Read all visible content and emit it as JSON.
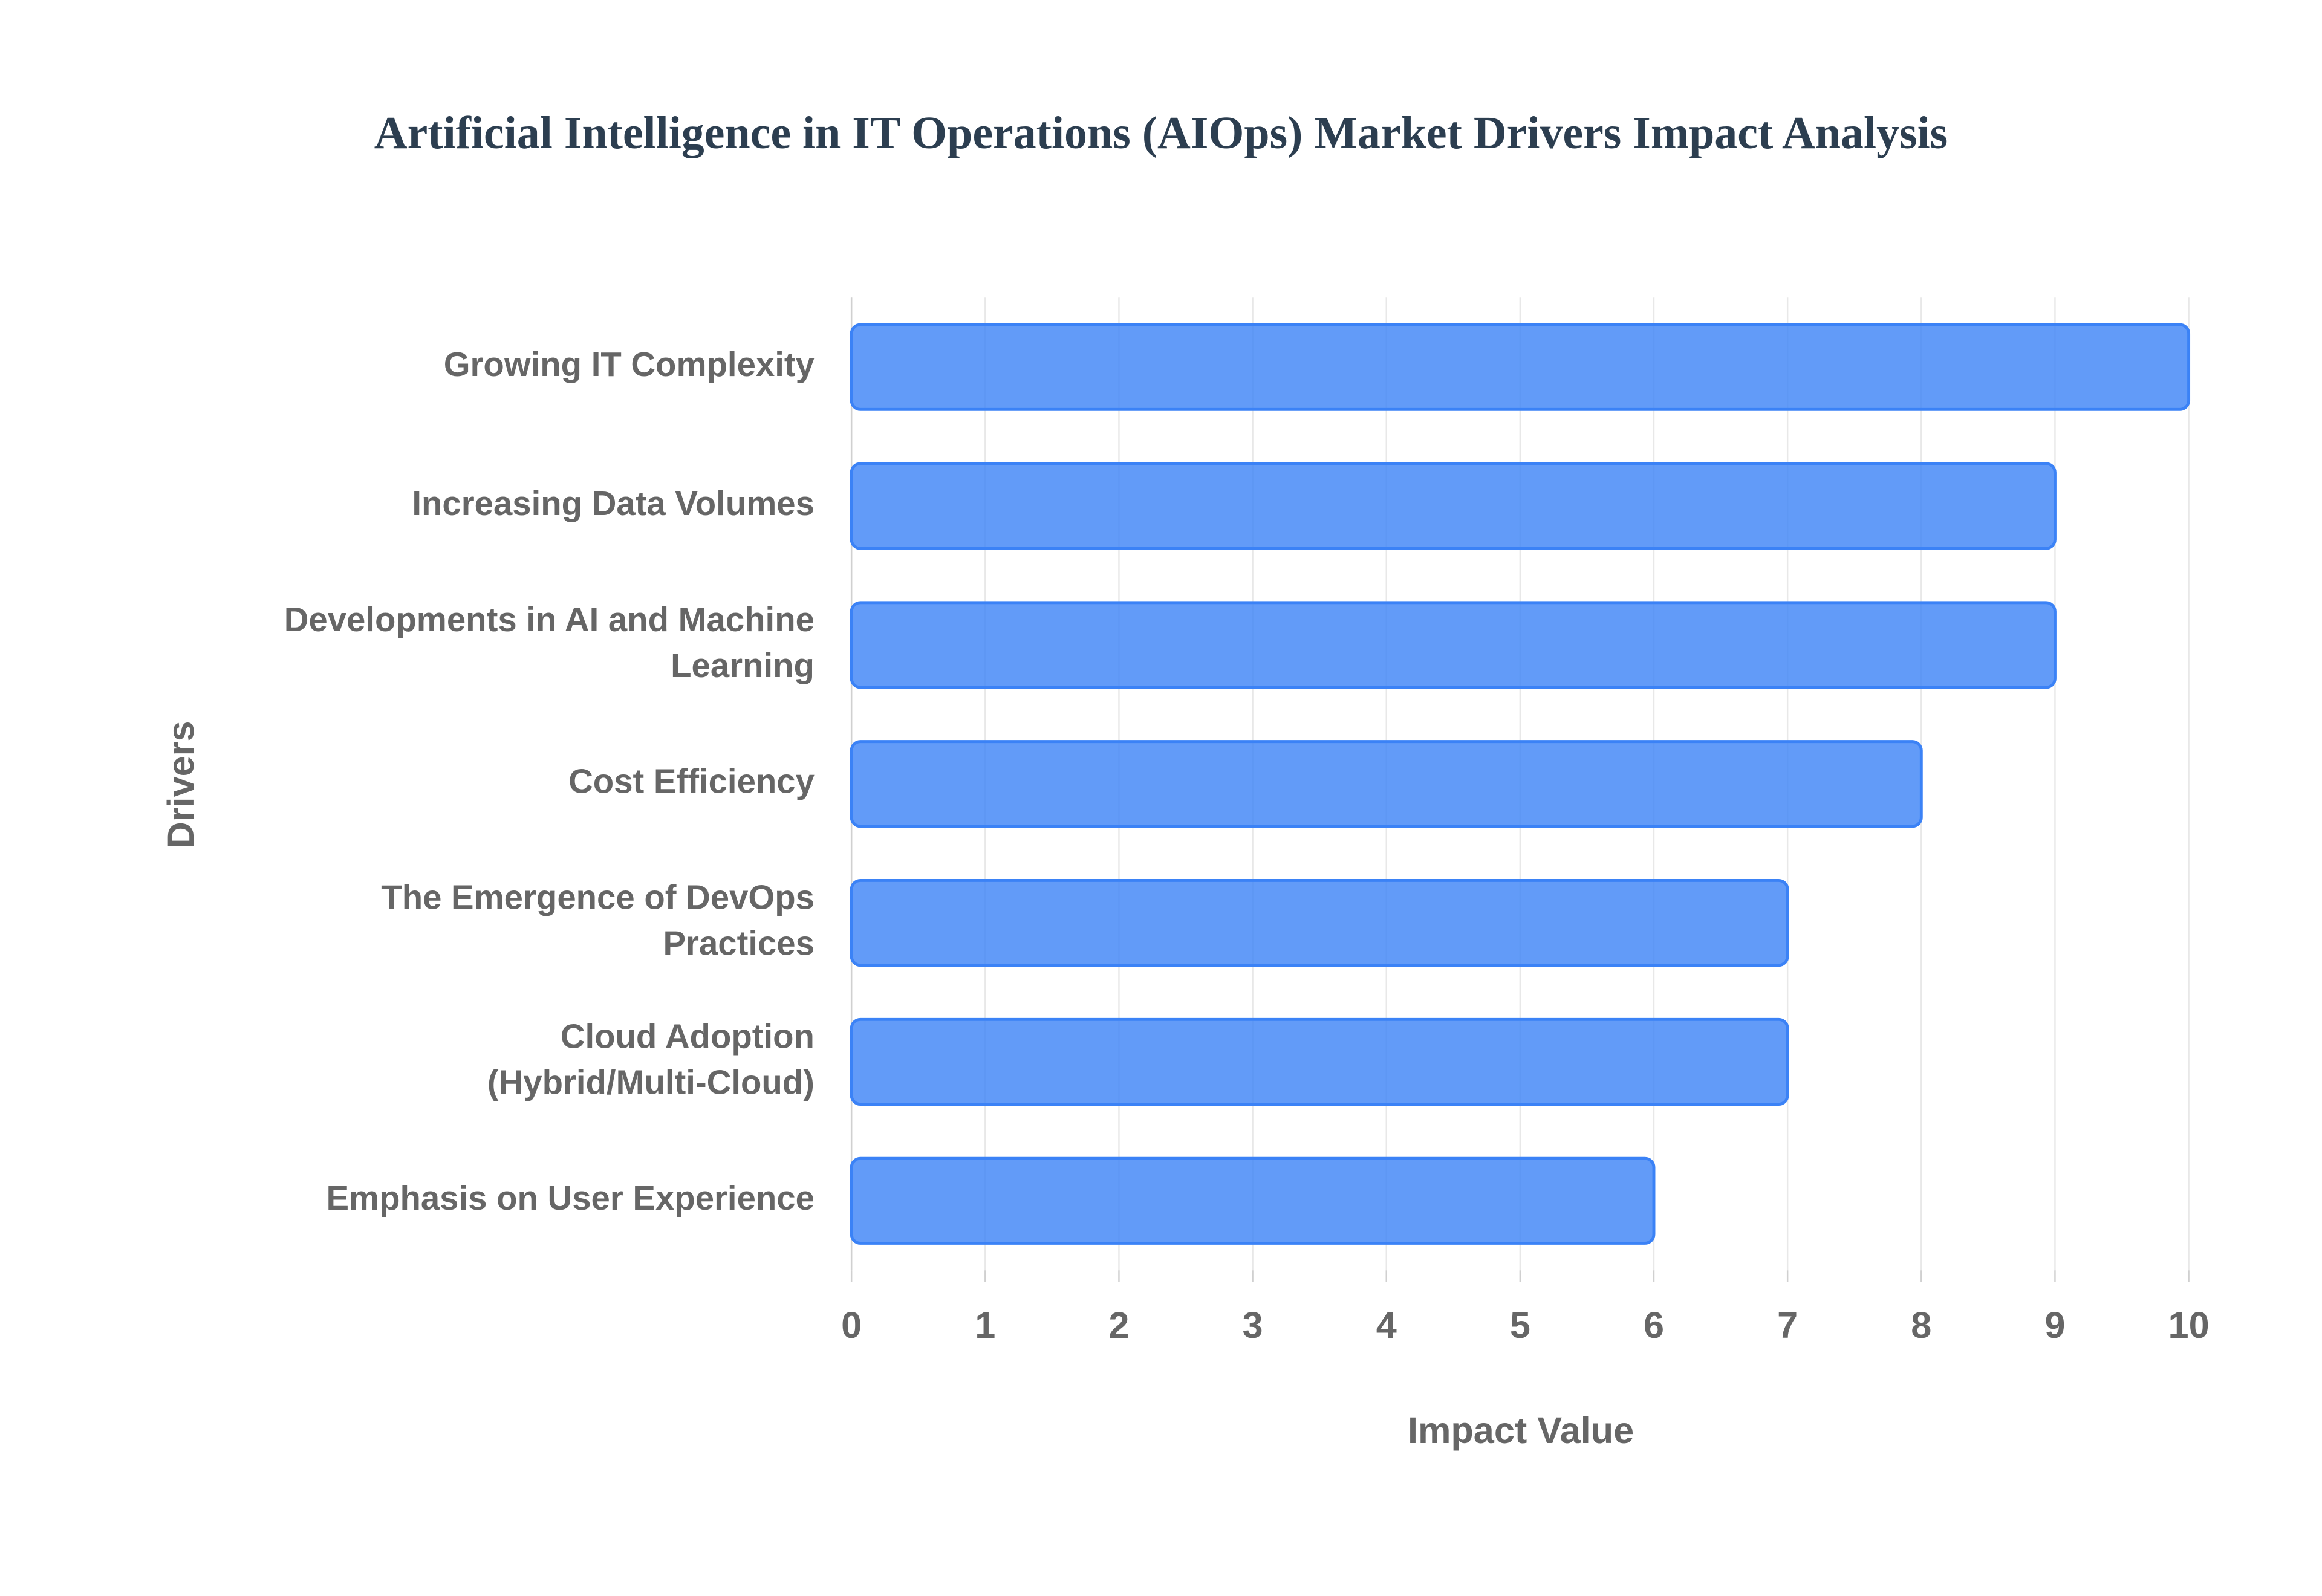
{
  "chart_data": {
    "type": "bar",
    "orientation": "horizontal",
    "title": "Artificial Intelligence in IT Operations (AIOps) Market Drivers Impact Analysis",
    "x_label": "Impact Value",
    "y_label": "Drivers",
    "categories": [
      "Growing IT Complexity",
      "Increasing Data Volumes",
      "Developments in AI and Machine Learning",
      "Cost Efficiency",
      "The Emergence of DevOps Practices",
      "Cloud Adoption (Hybrid/Multi-Cloud)",
      "Emphasis on User Experience"
    ],
    "values": [
      10,
      9,
      9,
      8,
      7,
      7,
      6
    ],
    "color": "#3b82f6",
    "xlim": [
      0,
      10
    ],
    "xticks": [
      0,
      1,
      2,
      3,
      4,
      5,
      6,
      7,
      8,
      9,
      10
    ],
    "grid": true
  }
}
